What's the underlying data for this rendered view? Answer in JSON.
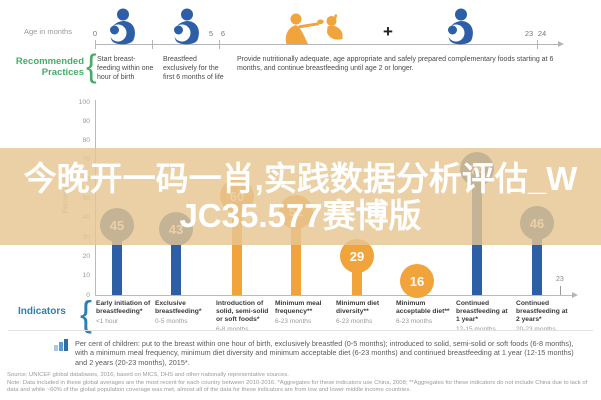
{
  "timeline": {
    "age_label": "Age in months",
    "ticks": [
      "0",
      "5",
      "6",
      "23",
      "24"
    ],
    "plus": "+",
    "recommended_label_line1": "Recommended",
    "recommended_label_line2": "Practices",
    "practices": [
      "Start breast-feeding within one hour of birth",
      "Breastfeed exclusively for the first 6 months of life",
      "Provide nutritionally adequate, age appropriate and safely prepared complementary foods starting at 6 months, and continue breastfeeding until age 2 or longer."
    ],
    "icons": [
      "nursing-mother-icon",
      "nursing-mother-icon",
      "complementary-feeding-icon",
      "nursing-mother-icon"
    ]
  },
  "overlay": {
    "text": "今晚开一码一肖,实践数据分析评估_WJC35.577赛博版",
    "lines": [
      "今晚开一码一肖,实践数据分析评估_W",
      "JC35.577赛博版"
    ],
    "background_color": "#e7c692",
    "text_color": "#ffffff"
  },
  "chart_data": {
    "type": "bar",
    "title": "",
    "ylabel": "Percentage",
    "ylim": [
      0,
      100
    ],
    "ytick_step": 10,
    "grid": false,
    "x_axis_end_label": "23",
    "categories": [
      "Early initiation of breastfeeding*",
      "Exclusive breastfeeding*",
      "Introduction of solid, semi-solid or soft foods*",
      "Minimum meal frequency**",
      "Minimum diet diversity**",
      "Minimum acceptable diet**",
      "Continued breastfeeding at 1 year*",
      "Continued breastfeeding at 2 years*"
    ],
    "sublabels": [
      "<1 hour",
      "0-5 months",
      "6-8 months",
      "6-23 months",
      "6-23 months",
      "6-23 months",
      "12-15 months",
      "20-23 months"
    ],
    "values": [
      45,
      43,
      60,
      52,
      29,
      16,
      74,
      46
    ],
    "colors": [
      "#2d5fa6",
      "#2d5fa6",
      "#f1a33c",
      "#f1a33c",
      "#f1a33c",
      "#f1a33c",
      "#2d5fa6",
      "#2d5fa6"
    ]
  },
  "indicators_label": "Indicators",
  "footer": {
    "caption": "Per cent of children: put to the breast within one hour of birth, exclusively breastfed (0-5 months); introduced to solid, semi-solid or soft foods (6-8 months), with a minimum meal frequency, minimum diet diversity and minimum acceptable diet (6-23 months) and continued breastfeeding at 1 year (12-15 months) and 2 years (20-23 months), 2015*.",
    "source": "Source: UNICEF global databases, 2016, based on MICS, DHS and other nationally representative sources.",
    "note": "Note: Data included in these global averages are the most recent for each country between 2010-2016. *Aggregates for these indicators use China, 2008; **Aggregates for these indicators do not include China due to lack of data and while ~60% of the global population coverage was met, almost all of the data for these indicators are from low and lower middle income countries."
  },
  "colors": {
    "blue": "#2d5fa6",
    "orange": "#f1a33c",
    "green": "#44ad68",
    "indicator_blue": "#2e7fb5"
  }
}
